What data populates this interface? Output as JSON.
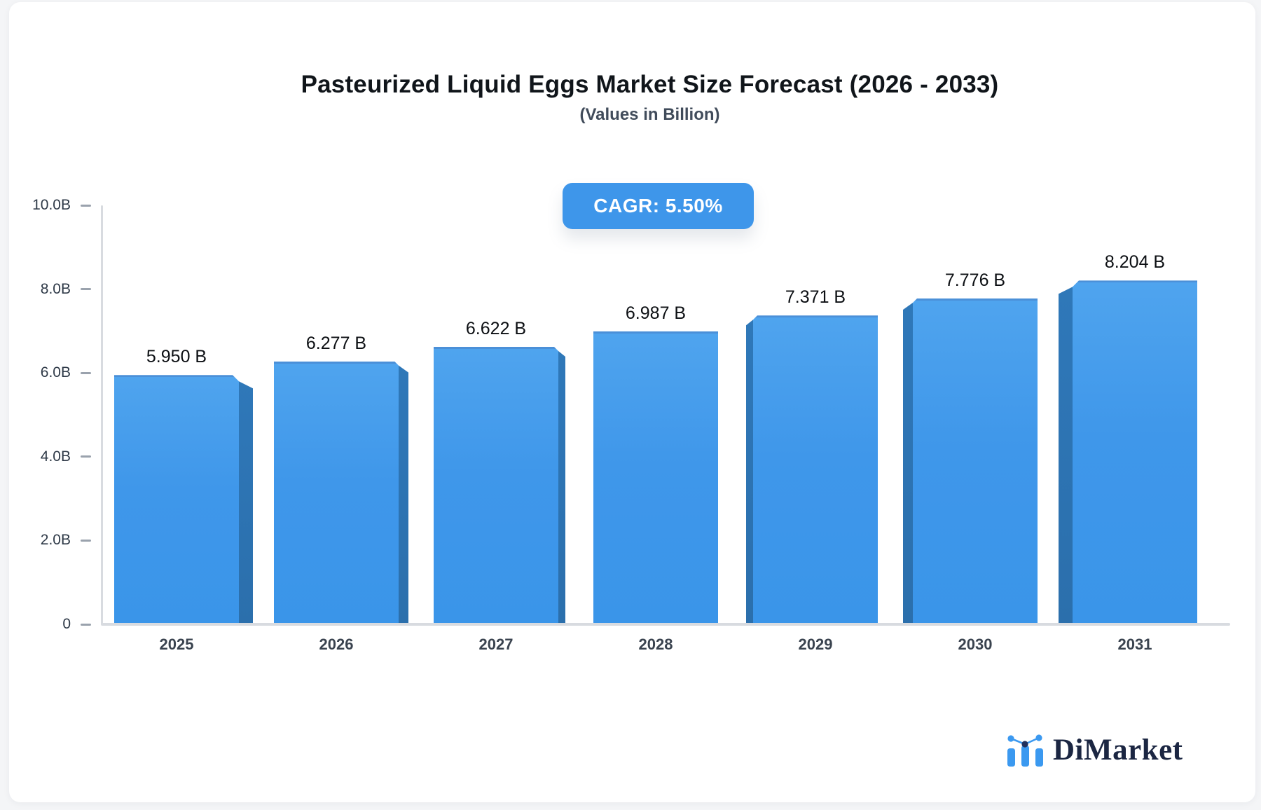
{
  "header": {
    "title": "Pasteurized Liquid Eggs Market Size Forecast (2026 - 2033)",
    "subtitle": "(Values in Billion)"
  },
  "badge": {
    "label": "CAGR: 5.50%"
  },
  "chart_data": {
    "type": "bar",
    "title": "Pasteurized Liquid Eggs Market Size Forecast (2026 - 2033)",
    "subtitle": "(Values in Billion)",
    "cagr": "5.50%",
    "categories": [
      "2025",
      "2026",
      "2027",
      "2028",
      "2029",
      "2030",
      "2031"
    ],
    "values": [
      5.95,
      6.277,
      6.622,
      6.987,
      7.371,
      7.776,
      8.204
    ],
    "value_labels": [
      "5.950 B",
      "6.277 B",
      "6.622 B",
      "6.987 B",
      "7.371 B",
      "7.776 B",
      "8.204 B"
    ],
    "xlabel": "",
    "ylabel": "",
    "ylim": [
      0,
      10
    ],
    "yticks": [
      {
        "value": 10,
        "label": "10.0B"
      },
      {
        "value": 8,
        "label": "8.0B"
      },
      {
        "value": 6,
        "label": "6.0B"
      },
      {
        "value": 4,
        "label": "4.0B"
      },
      {
        "value": 2,
        "label": "2.0B"
      },
      {
        "value": 0,
        "label": "0"
      }
    ],
    "grid": false,
    "legend": false,
    "bar_color": "#3F97EA",
    "bar_side_color": "#2E75B5",
    "style": "3d-perspective-center"
  },
  "logo": {
    "text": "DiMarket",
    "icon": "bar-line-chart-icon"
  },
  "colors": {
    "background": "#f4f5f7",
    "card": "#ffffff",
    "badge_bg": "#3E96EA",
    "axis": "#d8dbe0",
    "tick": "#9aa2ad",
    "logo_blue": "#3B99F0",
    "logo_navy": "#1B2642"
  }
}
